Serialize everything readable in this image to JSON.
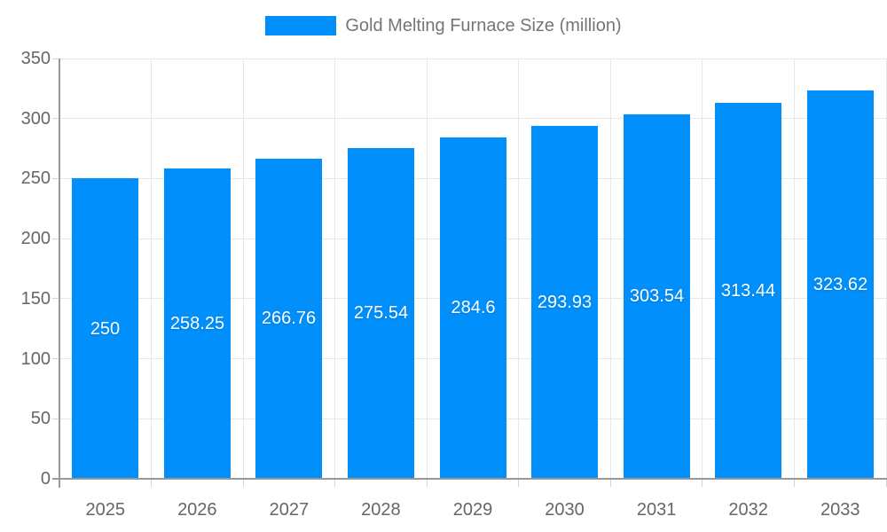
{
  "chart_data": {
    "type": "bar",
    "title": "Gold Melting Furnace Size (million)",
    "legend": {
      "position": "top",
      "label": "Gold Melting Furnace Size (million)"
    },
    "categories": [
      "2025",
      "2026",
      "2027",
      "2028",
      "2029",
      "2030",
      "2031",
      "2032",
      "2033"
    ],
    "series": [
      {
        "name": "Gold Melting Furnace Size (million)",
        "values": [
          250,
          258.25,
          266.76,
          275.54,
          284.6,
          293.93,
          303.54,
          313.44,
          323.62
        ]
      }
    ],
    "data_labels": [
      "250",
      "258.25",
      "266.76",
      "275.54",
      "284.6",
      "293.93",
      "303.54",
      "313.44",
      "323.62"
    ],
    "xlabel": "",
    "ylabel": "",
    "ylim": [
      0,
      350
    ],
    "ytick_step": 50,
    "ytick_labels": [
      "0",
      "50",
      "100",
      "150",
      "200",
      "250",
      "300",
      "350"
    ],
    "grid": true,
    "colors": {
      "bar": "#008FFB",
      "grid": "#e7e7e7",
      "axis": "#999999",
      "category_tick": "#d4d4d4",
      "axis_label": "#666666",
      "legend_text": "#757575",
      "data_label": "#ffffff",
      "background": "#ffffff"
    }
  }
}
